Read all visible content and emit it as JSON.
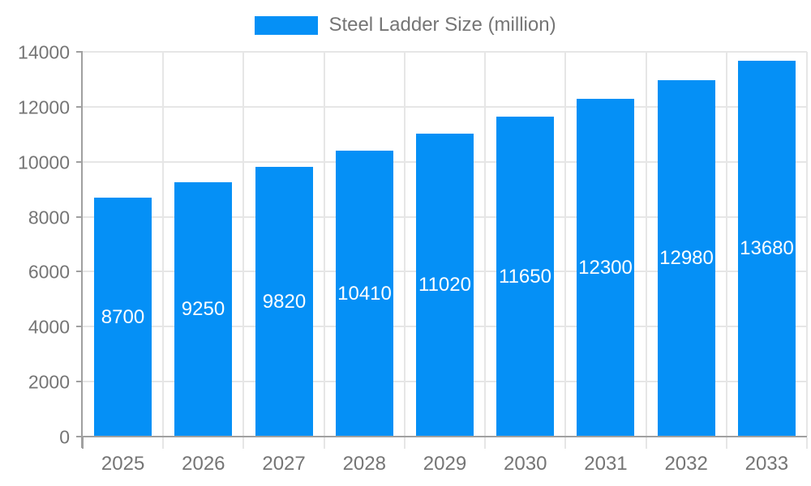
{
  "legend": {
    "label": "Steel Ladder Size (million)"
  },
  "chart_data": {
    "type": "bar",
    "title": "",
    "xlabel": "",
    "ylabel": "",
    "categories": [
      "2025",
      "2026",
      "2027",
      "2028",
      "2029",
      "2030",
      "2031",
      "2032",
      "2033"
    ],
    "series": [
      {
        "name": "Steel Ladder Size (million)",
        "values": [
          8700,
          9250,
          9820,
          10410,
          11020,
          11650,
          12300,
          12980,
          13680
        ]
      }
    ],
    "value_labels_shown": true,
    "value_label_position": "inside-center",
    "value_label_color": "#ffffff",
    "ylim": [
      0,
      14000
    ],
    "yticks": [
      0,
      2000,
      4000,
      6000,
      8000,
      10000,
      12000,
      14000
    ],
    "grid": true,
    "legend_position": "top-center",
    "colors": {
      "bar": "#0590f6",
      "axis_line": "#a0a0a0",
      "gridline": "#e6e6e6",
      "axis_text": "#757575"
    }
  }
}
